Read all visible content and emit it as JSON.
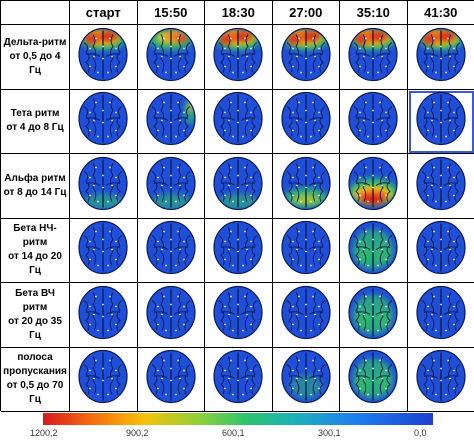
{
  "header": {
    "corner": "",
    "times": [
      "старт",
      "15:50",
      "18:30",
      "27:00",
      "35:10",
      "41:30"
    ]
  },
  "rows": [
    {
      "label": "Дельта-ритм\nот 0,5 до 4 Гц",
      "maps": [
        "frontal-hot",
        "frontal-warm",
        "frontal-hot",
        "frontal-hot",
        "frontal-hot",
        "frontal-hot"
      ]
    },
    {
      "label": "Тета ритм\nот 4 до 8 Гц",
      "maps": [
        "cool",
        "cool-right",
        "cool",
        "cool",
        "cool",
        "cool"
      ]
    },
    {
      "label": "Альфа ритм\nот 8 до 14 Гц",
      "maps": [
        "posterior-mild",
        "posterior-mild",
        "posterior-mild",
        "posterior-warm",
        "posterior-hot",
        "cool"
      ]
    },
    {
      "label": "Бета НЧ-ритм\nот 14 до 20\nГц",
      "maps": [
        "cool",
        "cool",
        "cool",
        "cool",
        "diffuse-green",
        "cool"
      ]
    },
    {
      "label": "Бета ВЧ ритм\nот 20 до 35\nГц",
      "maps": [
        "cool",
        "cool",
        "cool",
        "cool",
        "diffuse-green",
        "cool"
      ]
    },
    {
      "label": "полоса\nпропускания\nот 0,5 до 70\nГц",
      "maps": [
        "cool",
        "cool",
        "cool",
        "diffuse-light",
        "diffuse-green",
        "cool"
      ]
    }
  ],
  "colorbar": {
    "ticks": [
      "1200,2",
      "900,2",
      "600,1",
      "300,1",
      "0,0"
    ]
  },
  "colors": {
    "cool": "#1f4fd8",
    "green": "#2fc06a",
    "yellow": "#f2d30e",
    "orange": "#f57a14",
    "red": "#d91a1a"
  }
}
